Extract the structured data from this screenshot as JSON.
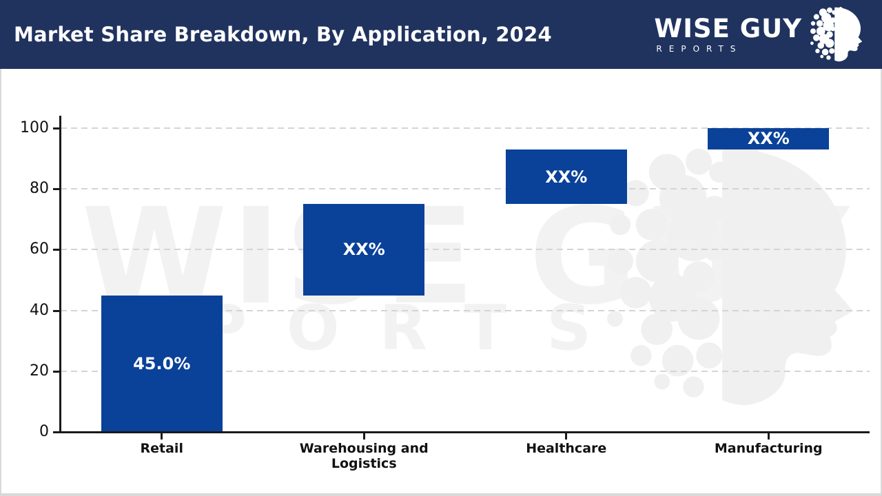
{
  "header": {
    "title": "Market Share Breakdown, By Application, 2024",
    "brand_name": "WISE GUY",
    "brand_sub": "REPORTS"
  },
  "watermark": {
    "line1": "WISE GUY",
    "line2": "PORTS"
  },
  "colors": {
    "header_navy": "#20335f",
    "bar_blue": "#0a4199",
    "grid_gray": "#d4d4d4",
    "axis_black": "#1a1a1a",
    "watermark_gray": "#f2f2f2",
    "frame_gray": "#d9d9d9",
    "bar_label_white": "#ffffff"
  },
  "chart_data": {
    "type": "bar",
    "subtype": "stacked-waterfall",
    "title": "Market Share Breakdown, By Application, 2024",
    "xlabel": "",
    "ylabel": "",
    "categories": [
      "Retail",
      "Warehousing and\nLogistics",
      "Healthcare",
      "Manufacturing"
    ],
    "bars": [
      {
        "category": "Retail",
        "start": 0,
        "end": 45,
        "value_label": "45.0%"
      },
      {
        "category": "Warehousing and\nLogistics",
        "start": 45,
        "end": 75,
        "value_label": "XX%"
      },
      {
        "category": "Healthcare",
        "start": 75,
        "end": 93,
        "value_label": "XX%"
      },
      {
        "category": "Manufacturing",
        "start": 93,
        "end": 100,
        "value_label": "XX%"
      }
    ],
    "yticks": [
      0,
      20,
      40,
      60,
      80,
      100
    ],
    "ylim": [
      0,
      104
    ],
    "grid": "horizontal-dashed",
    "legend": "none"
  }
}
